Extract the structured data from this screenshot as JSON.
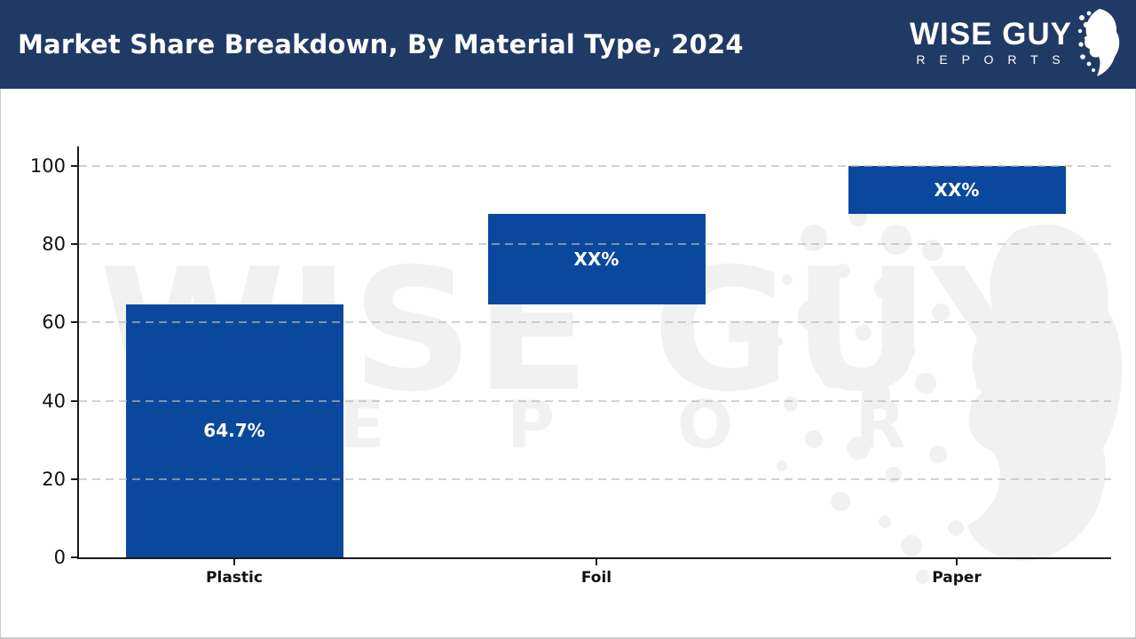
{
  "header": {
    "title": "Market Share Breakdown, By Material Type, 2024",
    "bg_color": "#203a66",
    "logo": {
      "line1": "WISE GUY",
      "line2": "R E P O R T S"
    }
  },
  "watermark": {
    "line1": "WISE GUY",
    "line2": "R E P O R T S"
  },
  "chart_data": {
    "type": "bar",
    "subtype": "floating-segment (waterfall / stacked breakdown)",
    "title": "Market Share Breakdown, By Material Type, 2024",
    "categories": [
      "Plastic",
      "Foil",
      "Paper"
    ],
    "segments": [
      {
        "category": "Plastic",
        "from": 0,
        "to": 64.7,
        "label": "64.7%"
      },
      {
        "category": "Foil",
        "from": 64.7,
        "to": 87.7,
        "label": "XX%"
      },
      {
        "category": "Paper",
        "from": 87.7,
        "to": 100,
        "label": "XX%"
      }
    ],
    "xlabel": "",
    "ylabel": "",
    "yticks": [
      0,
      20,
      40,
      60,
      80,
      100
    ],
    "ylim": [
      0,
      105
    ],
    "grid": "horizontal-dashed, drawn over bars",
    "legend": "none",
    "bar_color": "#0a489e",
    "bar_label_color": "#ffffff",
    "axis_color": "#1a1a1a"
  }
}
